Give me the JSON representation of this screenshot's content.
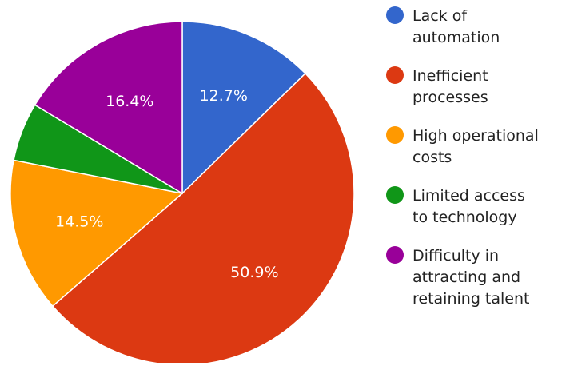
{
  "chart_data": {
    "type": "pie",
    "categories": [
      "Lack of automation",
      "Inefficient processes",
      "High operational costs",
      "Limited access to technology",
      "Difficulty in attracting and retaining talent"
    ],
    "values": [
      12.7,
      50.9,
      14.5,
      5.5,
      16.4
    ],
    "value_labels": [
      "12.7%",
      "50.9%",
      "14.5%",
      "",
      "16.4%"
    ],
    "colors": [
      "#3366cc",
      "#dc3912",
      "#ff9900",
      "#109618",
      "#990099"
    ],
    "legend_lines": [
      [
        "Lack of",
        "automation"
      ],
      [
        "Inefficient",
        "processes"
      ],
      [
        "High operational",
        "costs"
      ],
      [
        "Limited access",
        "to technology"
      ],
      [
        "Difficulty in",
        "attracting and",
        "retaining talent"
      ]
    ],
    "legend_position": "right",
    "start_angle": "12 o'clock",
    "direction": "clockwise"
  }
}
